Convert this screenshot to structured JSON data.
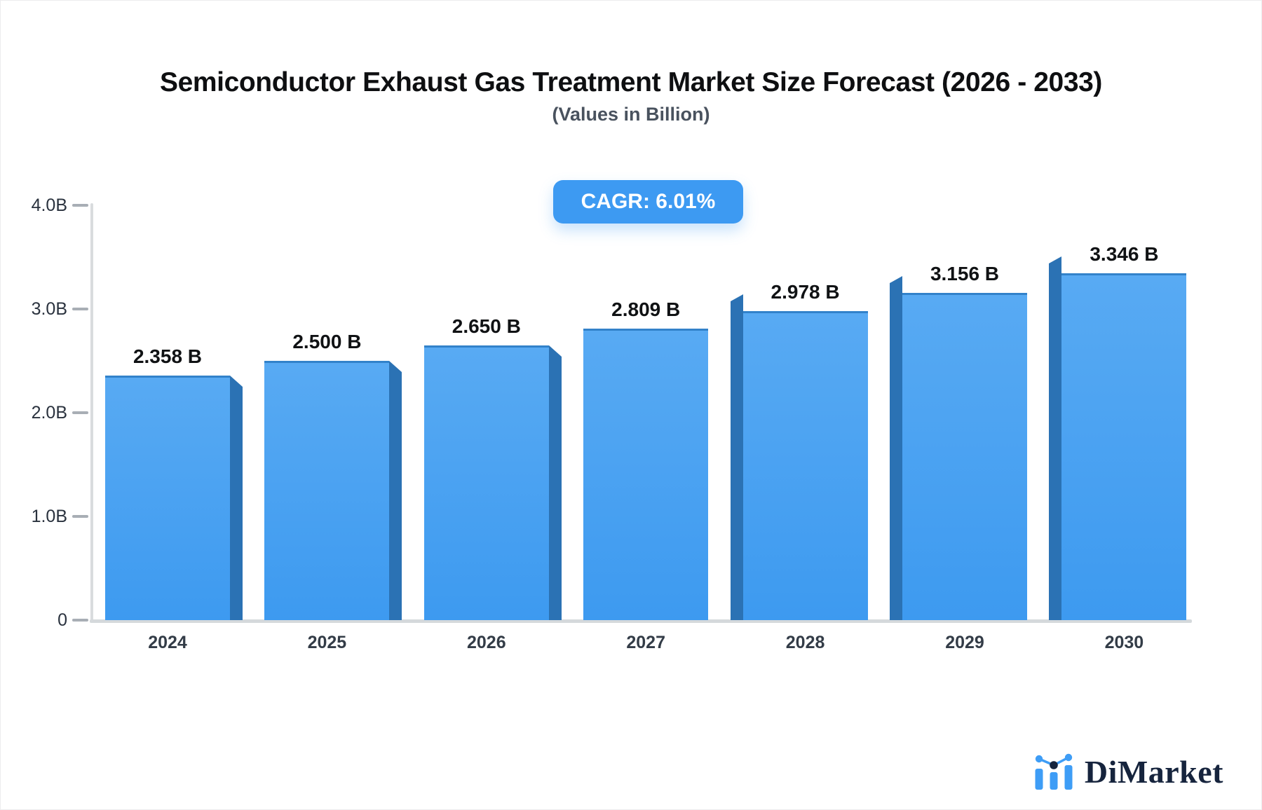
{
  "title": "Semiconductor Exhaust Gas Treatment Market Size Forecast (2026 - 2033)",
  "subtitle": "(Values in Billion)",
  "badge": {
    "label": "CAGR: 6.01%"
  },
  "chart_data": {
    "type": "bar",
    "categories": [
      "2024",
      "2025",
      "2026",
      "2027",
      "2028",
      "2029",
      "2030"
    ],
    "values": [
      2.358,
      2.5,
      2.65,
      2.809,
      2.978,
      3.156,
      3.346
    ],
    "value_labels": [
      "2.358 B",
      "2.500 B",
      "2.650 B",
      "2.809 B",
      "2.978 B",
      "3.156 B",
      "3.346 B"
    ],
    "title": "Semiconductor Exhaust Gas Treatment Market Size Forecast (2026 - 2033)",
    "subtitle": "(Values in Billion)",
    "xlabel": "",
    "ylabel": "",
    "y_ticks": [
      {
        "value": 4,
        "label": "4.0B"
      },
      {
        "value": 3,
        "label": "3.0B"
      },
      {
        "value": 2,
        "label": "2.0B"
      },
      {
        "value": 1,
        "label": "1.0B"
      },
      {
        "value": 0,
        "label": "0"
      }
    ],
    "ylim": [
      0,
      4
    ],
    "grid": false,
    "legend": false,
    "bar_style": "3d-perspective"
  },
  "logo": {
    "text": "DiMarket",
    "icon": "mini-bar-chart-icon"
  },
  "colors": {
    "bar_face_top": "#58aaf3",
    "bar_face_bottom": "#3d9af0",
    "bar_side": "#2b72b4",
    "bar_top_edge": "#3282ca",
    "badge_bg": "#3d9af2",
    "badge_text": "#ffffff",
    "axis": "#d9dcde",
    "tick": "#a8aeb5",
    "title_text": "#0e0f11",
    "subtitle_text": "#49525e",
    "logo_navy": "#16243d",
    "logo_blue": "#3e9df6"
  }
}
